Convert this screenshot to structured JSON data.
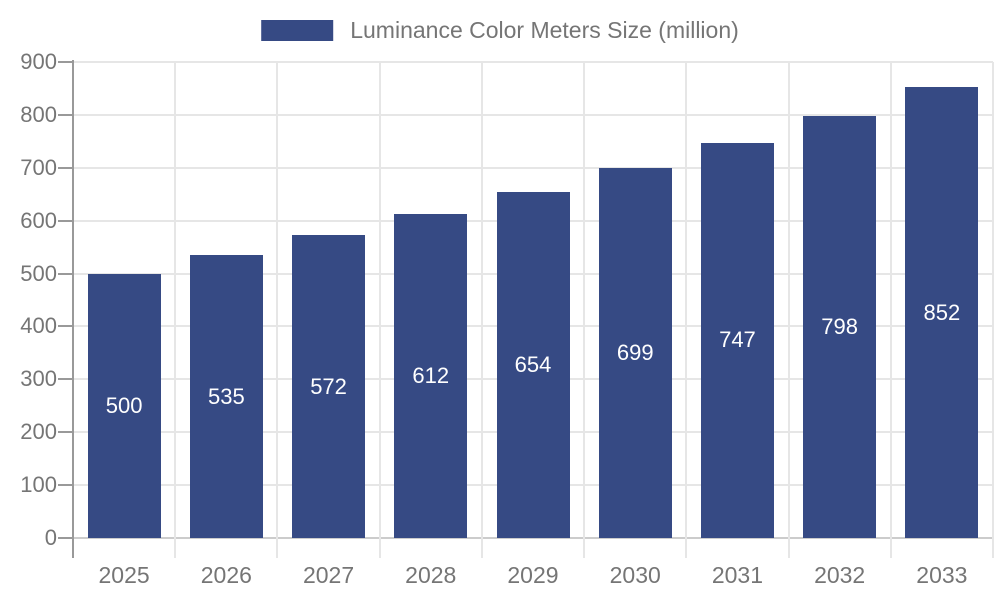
{
  "chart_data": {
    "type": "bar",
    "title": "",
    "legend": {
      "label": "Luminance Color Meters Size (million)",
      "position": "top-center"
    },
    "categories": [
      "2025",
      "2026",
      "2027",
      "2028",
      "2029",
      "2030",
      "2031",
      "2032",
      "2033"
    ],
    "series": [
      {
        "name": "Luminance Color Meters Size (million)",
        "values": [
          500,
          535,
          572,
          612,
          654,
          699,
          747,
          798,
          852
        ]
      }
    ],
    "xlabel": "",
    "ylabel": "",
    "ylim": [
      0,
      900
    ],
    "yticks": [
      0,
      100,
      200,
      300,
      400,
      500,
      600,
      700,
      800,
      900
    ],
    "grid": true,
    "value_labels": "inside-center",
    "colors": {
      "bar": "#364a84",
      "grid": "#e6e6e6",
      "zero_line": "#cccccc",
      "axis": "#999999",
      "tick_label": "#757575",
      "value_label": "#ffffff",
      "background": "#ffffff"
    }
  }
}
